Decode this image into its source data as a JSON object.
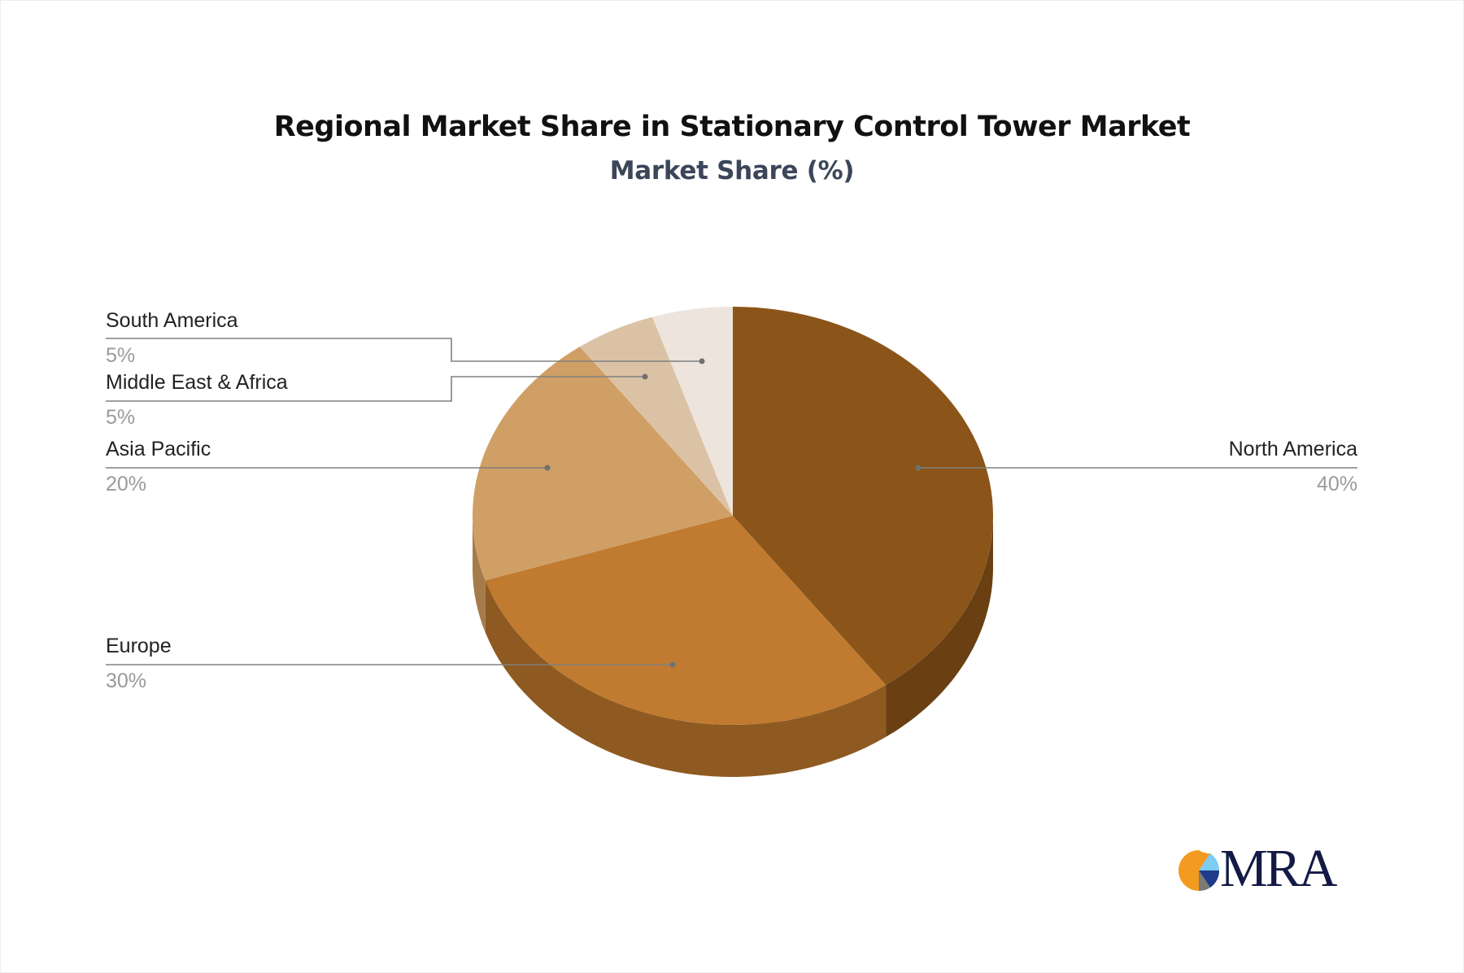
{
  "chart_data": {
    "type": "pie",
    "style": "3d",
    "title": "Regional Market Share in Stationary Control Tower Market",
    "subtitle": "Market Share (%)",
    "slices": [
      {
        "label": "North America",
        "value": 40,
        "display": "40%",
        "color": "#8B5519",
        "side_color": "#6A4013"
      },
      {
        "label": "Europe",
        "value": 30,
        "display": "30%",
        "color": "#C07B30",
        "side_color": "#8E5A22"
      },
      {
        "label": "Asia Pacific",
        "value": 20,
        "display": "20%",
        "color": "#D09F65",
        "side_color": "#A67B4C"
      },
      {
        "label": "Middle East & Africa",
        "value": 5,
        "display": "5%",
        "color": "#DCC2A5",
        "side_color": "#B39C84"
      },
      {
        "label": "South America",
        "value": 5,
        "display": "5%",
        "color": "#EDE4DD",
        "side_color": "#C8BDB4"
      }
    ],
    "legend": "callout-labels"
  },
  "logo": {
    "text": "MRA"
  }
}
